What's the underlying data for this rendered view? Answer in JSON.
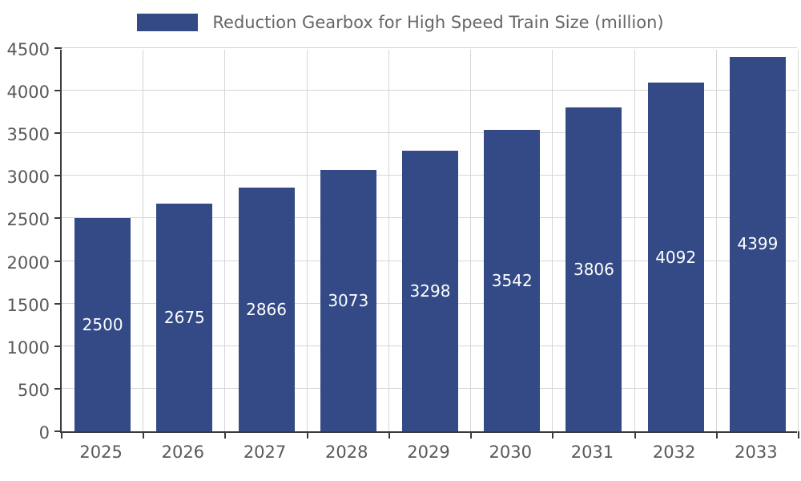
{
  "chart_data": {
    "type": "bar",
    "title": "Reduction Gearbox for High Speed Train Size (million)",
    "categories": [
      "2025",
      "2026",
      "2027",
      "2028",
      "2029",
      "2030",
      "2031",
      "2032",
      "2033"
    ],
    "values": [
      2500,
      2675,
      2866,
      3073,
      3298,
      3542,
      3806,
      4092,
      4399
    ],
    "xlabel": "",
    "ylabel": "",
    "ylim": [
      0,
      4500
    ],
    "ytick_step": 500,
    "legend_position": "top",
    "grid": "on",
    "bar_color": "#334a86",
    "value_label_color": "#ffffff",
    "axis_text_color": "#595959",
    "grid_color": "#d6d6d6",
    "axis_line_color": "#3b3b3b"
  }
}
